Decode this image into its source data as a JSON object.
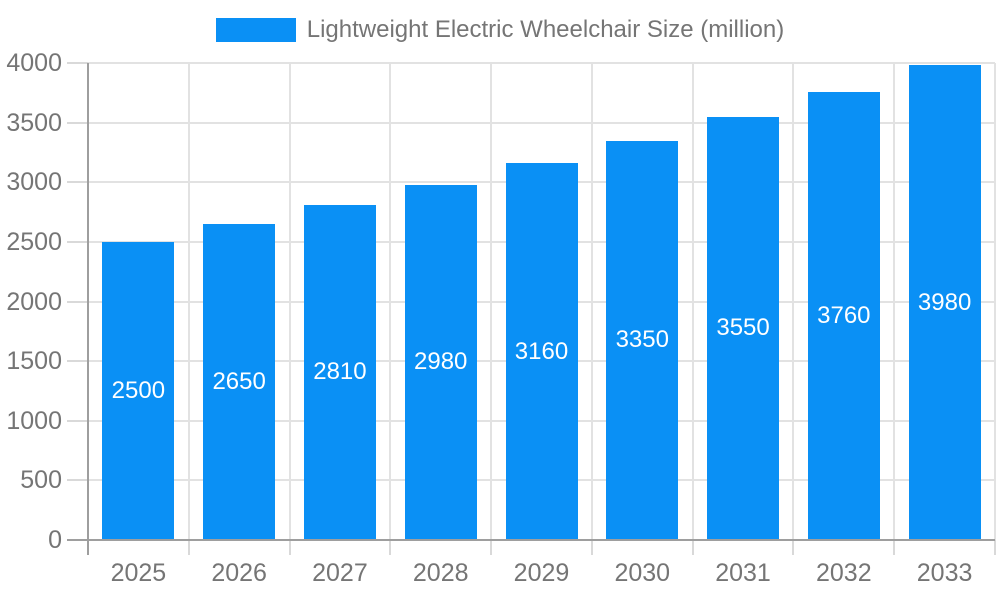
{
  "legend": {
    "label": "Lightweight Electric Wheelchair Size (million)"
  },
  "chart_data": {
    "type": "bar",
    "title": "",
    "xlabel": "",
    "ylabel": "",
    "categories": [
      "2025",
      "2026",
      "2027",
      "2028",
      "2029",
      "2030",
      "2031",
      "2032",
      "2033"
    ],
    "series": [
      {
        "name": "Lightweight Electric Wheelchair Size (million)",
        "color": "#0a90f5",
        "values": [
          2500,
          2650,
          2810,
          2980,
          3160,
          3350,
          3550,
          3760,
          3980
        ]
      }
    ],
    "value_labels_shown": true,
    "ylim": [
      0,
      4000
    ],
    "yticks": [
      0,
      500,
      1000,
      1500,
      2000,
      2500,
      3000,
      3500,
      4000
    ],
    "grid": "on",
    "legend_position": "top-center",
    "colors": {
      "bar": "#0a90f5",
      "value_label": "#ffffff",
      "axis_line": "#9e9e9e",
      "gridline": "#e2e2e2",
      "tick_line": "#d9d9d9",
      "axis_text": "#757575",
      "legend_text": "#757575",
      "background": "#ffffff"
    }
  }
}
